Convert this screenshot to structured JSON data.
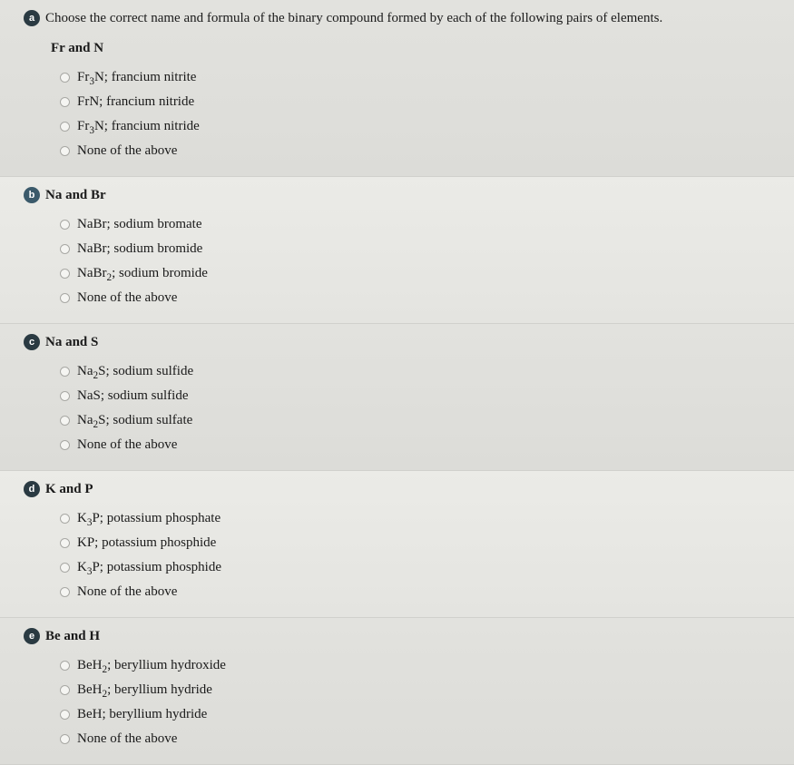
{
  "intro": "Choose the correct name and formula of the binary compound formed by each of the following pairs of elements.",
  "questions": [
    {
      "letter": "a",
      "letterStyle": "dark",
      "shade": "shaded",
      "showIntro": true,
      "pair": "Fr and N",
      "options": [
        {
          "formula_html": "Fr<sub>3</sub>N",
          "name": "francium nitrite"
        },
        {
          "formula_html": "FrN",
          "name": "francium nitride"
        },
        {
          "formula_html": "Fr<sub>3</sub>N",
          "name": "francium nitride"
        },
        {
          "none": true
        }
      ]
    },
    {
      "letter": "b",
      "letterStyle": "",
      "shade": "light",
      "pair": "Na and Br",
      "options": [
        {
          "formula_html": "NaBr",
          "name": "sodium bromate"
        },
        {
          "formula_html": "NaBr",
          "name": "sodium bromide"
        },
        {
          "formula_html": "NaBr<sub>2</sub>",
          "name": "sodium bromide"
        },
        {
          "none": true
        }
      ]
    },
    {
      "letter": "c",
      "letterStyle": "dark",
      "shade": "shaded",
      "pair": "Na and S",
      "options": [
        {
          "formula_html": "Na<sub>2</sub>S",
          "name": "sodium sulfide"
        },
        {
          "formula_html": "NaS",
          "name": "sodium sulfide"
        },
        {
          "formula_html": "Na<sub>2</sub>S",
          "name": "sodium sulfate"
        },
        {
          "none": true
        }
      ]
    },
    {
      "letter": "d",
      "letterStyle": "dark",
      "shade": "light",
      "pair": "K and P",
      "options": [
        {
          "formula_html": "K<sub>3</sub>P",
          "name": "potassium phosphate"
        },
        {
          "formula_html": "KP",
          "name": "potassium phosphide"
        },
        {
          "formula_html": "K<sub>3</sub>P",
          "name": "potassium phosphide"
        },
        {
          "none": true
        }
      ]
    },
    {
      "letter": "e",
      "letterStyle": "dark",
      "shade": "shaded",
      "pair": "Be and H",
      "options": [
        {
          "formula_html": "BeH<sub>2</sub>",
          "name": "beryllium hydroxide"
        },
        {
          "formula_html": "BeH<sub>2</sub>",
          "name": "beryllium hydride"
        },
        {
          "formula_html": "BeH",
          "name": "beryllium hydride"
        },
        {
          "none": true
        }
      ]
    }
  ],
  "noneLabel": "None of the above"
}
